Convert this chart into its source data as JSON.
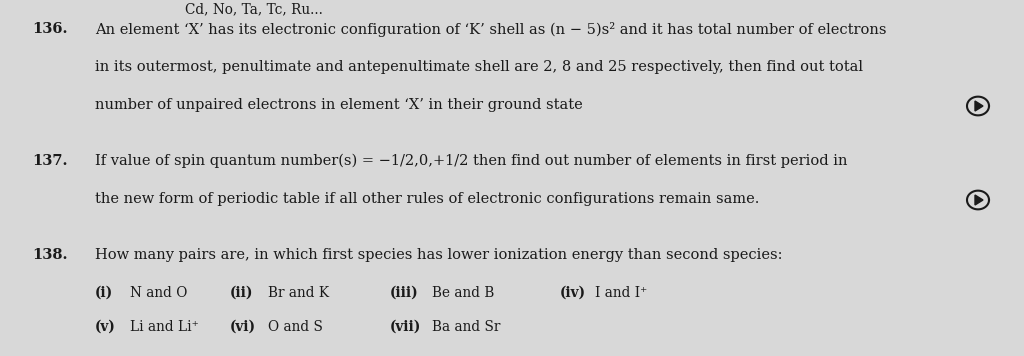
{
  "bg_color": "#d8d8d8",
  "text_color": "#1a1a1a",
  "top_text": "Cd, No, Ta, Tc, Ru...",
  "q136_num": "136.",
  "q136_line1": "An element ‘X’ has its electronic configuration of ‘K’ shell as (n − 5)s² and it has total number of electrons",
  "q136_line2": "in its outermost, penultimate and antepenultimate shell are 2, 8 and 25 respectively, then find out total",
  "q136_line3": "number of unpaired electrons in element ‘X’ in their ground state",
  "q137_num": "137.",
  "q137_line1": "If value of spin quantum number(s) = −1/2,0,+1/2 then find out number of elements in first period in",
  "q137_line2": "the new form of periodic table if all other rules of electronic configurations remain same.",
  "q138_num": "138.",
  "q138_line1": "How many pairs are, in which first species has lower ionization energy than second species:",
  "opt1_label": "(i)",
  "opt1_text": "N and O",
  "opt2_label": "(ii)",
  "opt2_text": "Br and K",
  "opt3_label": "(iii)",
  "opt3_text": "Be and B",
  "opt4_label": "(iv)",
  "opt4_text": "I and I⁺",
  "opt5_label": "(v)",
  "opt5_text": "Li and Li⁺",
  "opt6_label": "(vi)",
  "opt6_text": "O and S",
  "opt7_label": "(vii)",
  "opt7_text": "Ba and Sr",
  "font_size": 10.5,
  "font_size_small": 9.8
}
